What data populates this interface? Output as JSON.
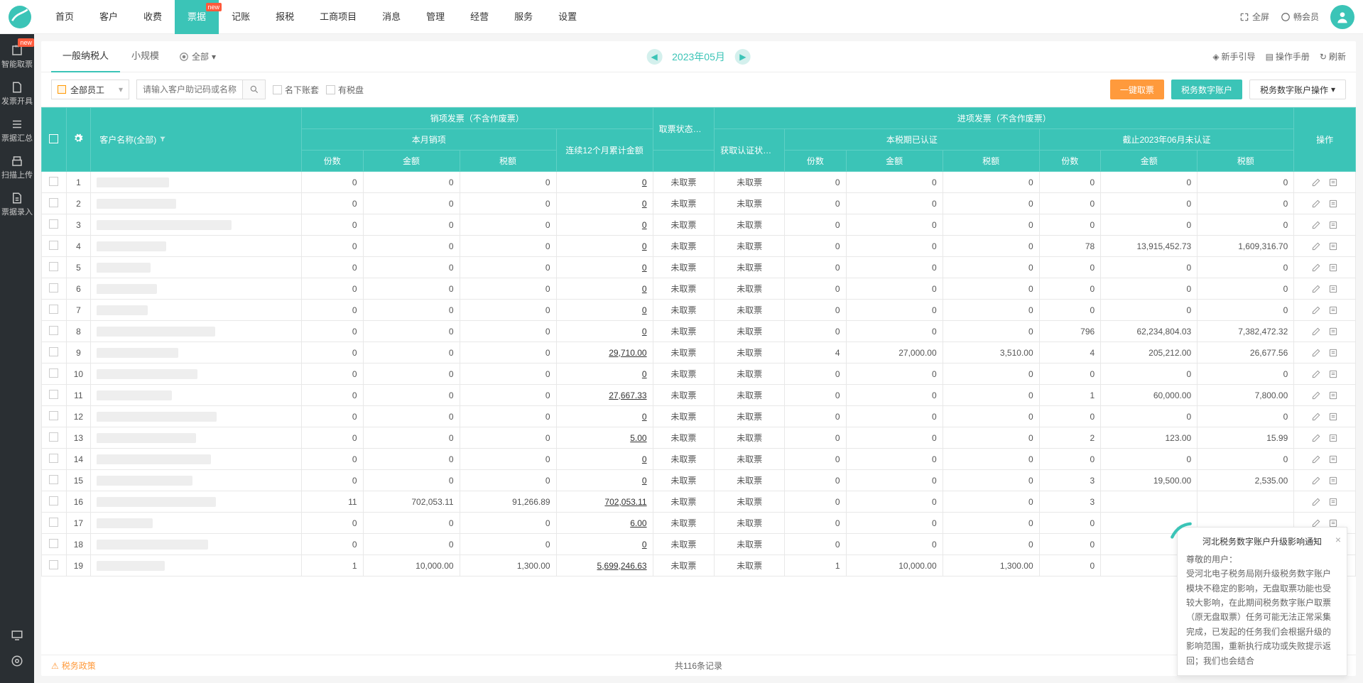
{
  "nav": {
    "items": [
      {
        "label": "首页",
        "new": false
      },
      {
        "label": "客户",
        "new": false
      },
      {
        "label": "收费",
        "new": false
      },
      {
        "label": "票据",
        "new": true,
        "active": true
      },
      {
        "label": "记账",
        "new": false
      },
      {
        "label": "报税",
        "new": false
      },
      {
        "label": "工商项目",
        "new": false
      },
      {
        "label": "消息",
        "new": false
      },
      {
        "label": "管理",
        "new": false
      },
      {
        "label": "经营",
        "new": false
      },
      {
        "label": "服务",
        "new": false
      },
      {
        "label": "设置",
        "new": false
      }
    ],
    "fullscreen": "全屏",
    "member": "畅会员"
  },
  "sidebar": {
    "items": [
      {
        "label": "智能取票",
        "new": true
      },
      {
        "label": "发票开具"
      },
      {
        "label": "票据汇总"
      },
      {
        "label": "扫描上传"
      },
      {
        "label": "票据录入"
      }
    ]
  },
  "tabs": {
    "t1": "一般纳税人",
    "t2": "小规模",
    "all": "全部",
    "date": "2023年05月",
    "guide": "新手引导",
    "manual": "操作手册",
    "refresh": "刷新"
  },
  "filter": {
    "employee": "全部员工",
    "search_placeholder": "请输入客户助记码或名称",
    "under_account": "名下账套",
    "has_disk": "有税盘",
    "btn_onekey": "一键取票",
    "btn_digital": "税务数字账户",
    "btn_ops": "税务数字账户操作"
  },
  "table": {
    "h_sales": "销项发票（不含作废票）",
    "h_purchase": "进项发票（不含作废票）",
    "h_month_sale": "本月销项",
    "h_12m": "连续12个月累计金额",
    "h_status": "取票状态（全部）",
    "h_recog": "本税期已认证",
    "h_until": "截止2023年06月未认证",
    "h_op": "操作",
    "h_copies": "份数",
    "h_amount": "金额",
    "h_tax": "税额",
    "h_recog_status": "获取认证状态（全部）",
    "h_name": "客户名称(全部)",
    "rows": [
      {
        "i": 1,
        "c": "0",
        "a": "0",
        "t": "0",
        "s": "0",
        "st": "未取票",
        "rs": "未取票",
        "rc": "0",
        "ra": "0",
        "rt": "0",
        "uc": "0",
        "ua": "0",
        "ut": "0"
      },
      {
        "i": 2,
        "c": "0",
        "a": "0",
        "t": "0",
        "s": "0",
        "st": "未取票",
        "rs": "未取票",
        "rc": "0",
        "ra": "0",
        "rt": "0",
        "uc": "0",
        "ua": "0",
        "ut": "0"
      },
      {
        "i": 3,
        "c": "0",
        "a": "0",
        "t": "0",
        "s": "0",
        "st": "未取票",
        "rs": "未取票",
        "rc": "0",
        "ra": "0",
        "rt": "0",
        "uc": "0",
        "ua": "0",
        "ut": "0"
      },
      {
        "i": 4,
        "c": "0",
        "a": "0",
        "t": "0",
        "s": "0",
        "st": "未取票",
        "rs": "未取票",
        "rc": "0",
        "ra": "0",
        "rt": "0",
        "uc": "78",
        "ua": "13,915,452.73",
        "ut": "1,609,316.70"
      },
      {
        "i": 5,
        "c": "0",
        "a": "0",
        "t": "0",
        "s": "0",
        "st": "未取票",
        "rs": "未取票",
        "rc": "0",
        "ra": "0",
        "rt": "0",
        "uc": "0",
        "ua": "0",
        "ut": "0"
      },
      {
        "i": 6,
        "c": "0",
        "a": "0",
        "t": "0",
        "s": "0",
        "st": "未取票",
        "rs": "未取票",
        "rc": "0",
        "ra": "0",
        "rt": "0",
        "uc": "0",
        "ua": "0",
        "ut": "0"
      },
      {
        "i": 7,
        "c": "0",
        "a": "0",
        "t": "0",
        "s": "0",
        "st": "未取票",
        "rs": "未取票",
        "rc": "0",
        "ra": "0",
        "rt": "0",
        "uc": "0",
        "ua": "0",
        "ut": "0"
      },
      {
        "i": 8,
        "c": "0",
        "a": "0",
        "t": "0",
        "s": "0",
        "st": "未取票",
        "rs": "未取票",
        "rc": "0",
        "ra": "0",
        "rt": "0",
        "uc": "796",
        "ua": "62,234,804.03",
        "ut": "7,382,472.32"
      },
      {
        "i": 9,
        "c": "0",
        "a": "0",
        "t": "0",
        "s": "29,710.00",
        "st": "未取票",
        "rs": "未取票",
        "rc": "4",
        "ra": "27,000.00",
        "rt": "3,510.00",
        "uc": "4",
        "ua": "205,212.00",
        "ut": "26,677.56"
      },
      {
        "i": 10,
        "c": "0",
        "a": "0",
        "t": "0",
        "s": "0",
        "st": "未取票",
        "rs": "未取票",
        "rc": "0",
        "ra": "0",
        "rt": "0",
        "uc": "0",
        "ua": "0",
        "ut": "0"
      },
      {
        "i": 11,
        "c": "0",
        "a": "0",
        "t": "0",
        "s": "27,667.33",
        "st": "未取票",
        "rs": "未取票",
        "rc": "0",
        "ra": "0",
        "rt": "0",
        "uc": "1",
        "ua": "60,000.00",
        "ut": "7,800.00"
      },
      {
        "i": 12,
        "c": "0",
        "a": "0",
        "t": "0",
        "s": "0",
        "st": "未取票",
        "rs": "未取票",
        "rc": "0",
        "ra": "0",
        "rt": "0",
        "uc": "0",
        "ua": "0",
        "ut": "0"
      },
      {
        "i": 13,
        "c": "0",
        "a": "0",
        "t": "0",
        "s": "5.00",
        "st": "未取票",
        "rs": "未取票",
        "rc": "0",
        "ra": "0",
        "rt": "0",
        "uc": "2",
        "ua": "123.00",
        "ut": "15.99"
      },
      {
        "i": 14,
        "c": "0",
        "a": "0",
        "t": "0",
        "s": "0",
        "st": "未取票",
        "rs": "未取票",
        "rc": "0",
        "ra": "0",
        "rt": "0",
        "uc": "0",
        "ua": "0",
        "ut": "0"
      },
      {
        "i": 15,
        "c": "0",
        "a": "0",
        "t": "0",
        "s": "0",
        "st": "未取票",
        "rs": "未取票",
        "rc": "0",
        "ra": "0",
        "rt": "0",
        "uc": "3",
        "ua": "19,500.00",
        "ut": "2,535.00"
      },
      {
        "i": 16,
        "c": "11",
        "a": "702,053.11",
        "t": "91,266.89",
        "s": "702,053.11",
        "st": "未取票",
        "rs": "未取票",
        "rc": "0",
        "ra": "0",
        "rt": "0",
        "uc": "3",
        "ua": "",
        "ut": ""
      },
      {
        "i": 17,
        "c": "0",
        "a": "0",
        "t": "0",
        "s": "6.00",
        "st": "未取票",
        "rs": "未取票",
        "rc": "0",
        "ra": "0",
        "rt": "0",
        "uc": "0",
        "ua": "",
        "ut": ""
      },
      {
        "i": 18,
        "c": "0",
        "a": "0",
        "t": "0",
        "s": "0",
        "st": "未取票",
        "rs": "未取票",
        "rc": "0",
        "ra": "0",
        "rt": "0",
        "uc": "0",
        "ua": "",
        "ut": ""
      },
      {
        "i": 19,
        "c": "1",
        "a": "10,000.00",
        "t": "1,300.00",
        "s": "5,699,246.63",
        "st": "未取票",
        "rs": "未取票",
        "rc": "1",
        "ra": "10,000.00",
        "rt": "1,300.00",
        "uc": "0",
        "ua": "",
        "ut": ""
      }
    ]
  },
  "footer": {
    "policy": "税务政策",
    "total": "共116条记录"
  },
  "notice": {
    "title": "河北税务数字账户升级影响通知",
    "greet": "尊敬的用户：",
    "body": "受河北电子税务局刚升级税务数字账户模块不稳定的影响，无盘取票功能也受较大影响，在此期间税务数字账户取票（原无盘取票）任务可能无法正常采集完成，已发起的任务我们会根据升级的影响范围，重新执行成功或失败提示返回；我们也会结合"
  },
  "colors": {
    "primary": "#3bc4b7",
    "orange": "#ff9a3c",
    "newTag": "#ff5a3c",
    "sidebarBg": "#2a2f33"
  }
}
